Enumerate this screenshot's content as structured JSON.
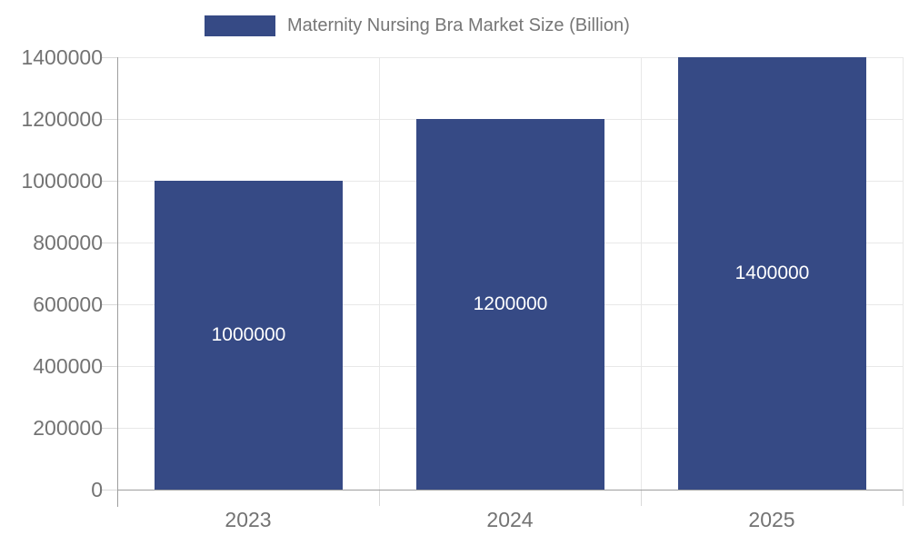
{
  "chart_data": {
    "type": "bar",
    "title": "Maternity Nursing Bra Market Size (Billion)",
    "legend": {
      "label": "Maternity Nursing Bra Market Size (Billion)",
      "position": "top"
    },
    "categories": [
      "2023",
      "2024",
      "2025"
    ],
    "values": [
      1000000,
      1200000,
      1400000
    ],
    "data_labels": [
      "1000000",
      "1200000",
      "1400000"
    ],
    "y_ticks": [
      0,
      200000,
      400000,
      600000,
      800000,
      1000000,
      1200000,
      1400000
    ],
    "y_tick_labels": [
      "0",
      "200000",
      "400000",
      "600000",
      "800000",
      "1000000",
      "1200000",
      "1400000"
    ],
    "ylim": [
      0,
      1400000
    ],
    "xlabel": "",
    "ylabel": "",
    "grid": true,
    "colors": {
      "bar": "#364A85",
      "legend_swatch": "#364A85",
      "legend_text": "#767676",
      "axis_text": "#737373",
      "data_label_text": "#ffffff",
      "grid_line": "#e8e8e8",
      "tick_line": "#d9d9d9",
      "axis_line": "#9e9e9e",
      "background": "#ffffff"
    }
  }
}
